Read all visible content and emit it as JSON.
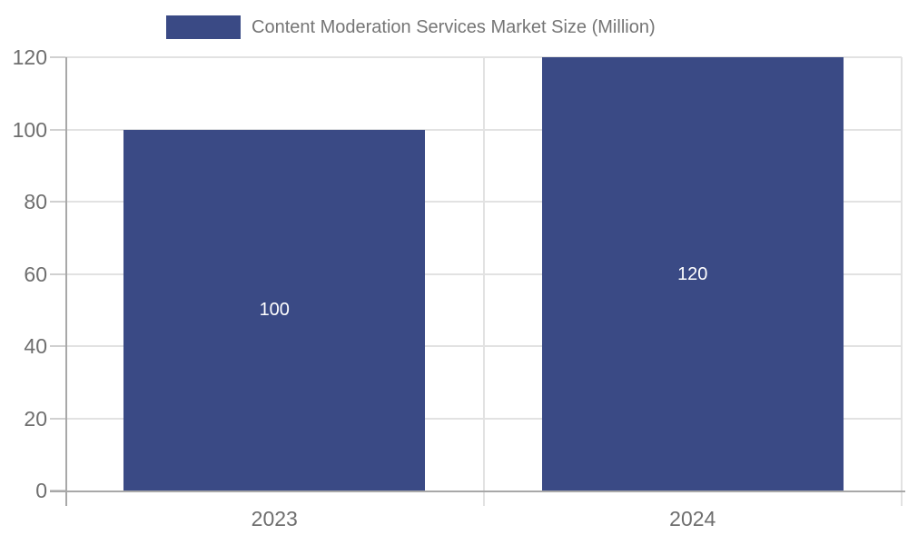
{
  "legend": {
    "label": "Content Moderation Services Market Size (Million)"
  },
  "chart_data": {
    "type": "bar",
    "title": "Content Moderation Services Market Size (Million)",
    "categories": [
      "2023",
      "2024"
    ],
    "series": [
      {
        "name": "Content Moderation Services Market Size (Million)",
        "values": [
          100,
          120
        ]
      }
    ],
    "data_labels": [
      "100",
      "120"
    ],
    "xlabel": "",
    "ylabel": "",
    "ylim": [
      0,
      120
    ],
    "yticks": [
      0,
      20,
      40,
      60,
      80,
      100,
      120
    ],
    "grid": true,
    "legend_position": "top"
  },
  "colors": {
    "bar": "#3a4a85",
    "grid": "#e2e2e2",
    "axis": "#a8a8a8",
    "tick_mark": "#d0d0d0",
    "tick_label": "#6e6e6e",
    "legend_text": "#757575",
    "bar_label": "#ffffff",
    "background": "#ffffff"
  }
}
